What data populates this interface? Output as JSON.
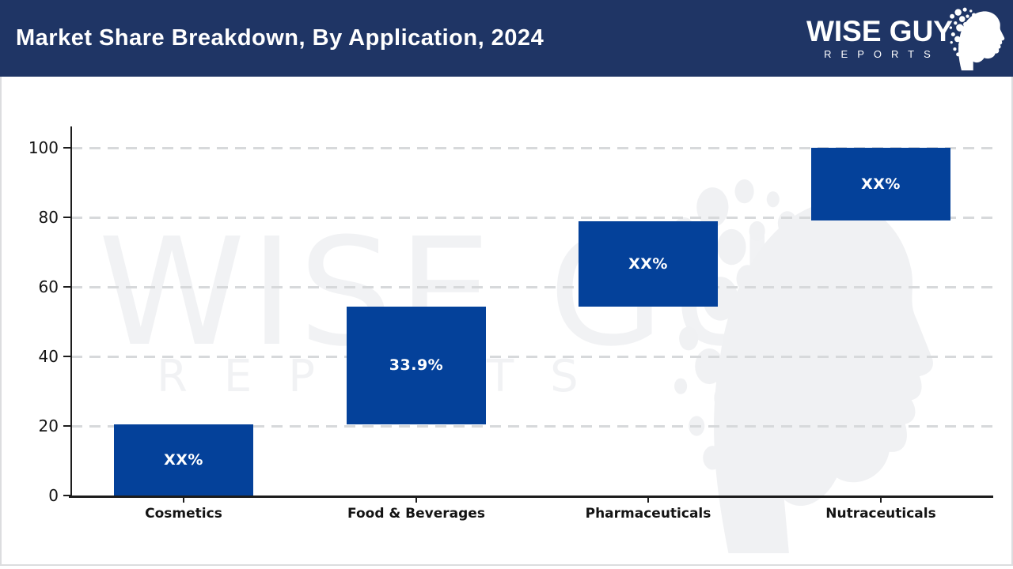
{
  "header": {
    "title": "Market Share Breakdown, By Application, 2024",
    "logo": {
      "line1": "WISE GUY",
      "line2": "REPORTS"
    }
  },
  "watermark": {
    "line1": "WISE GUY",
    "line2": "REPORTS"
  },
  "colors": {
    "header_bg": "#1f3565",
    "bar": "#04419a",
    "grid": "#d7d9db",
    "axis": "#1c1c1c",
    "watermark": "#f1f2f4"
  },
  "chart_data": {
    "type": "bar",
    "subtype": "waterfall",
    "title": "Market Share Breakdown, By Application, 2024",
    "categories": [
      "Cosmetics",
      "Food & Beverages",
      "Pharmaceuticals",
      "Nutraceuticals"
    ],
    "bars": [
      {
        "category": "Cosmetics",
        "start": 0,
        "end": 20.5,
        "label": "XX%"
      },
      {
        "category": "Food & Beverages",
        "start": 20.5,
        "end": 54.4,
        "label": "33.9%",
        "value": 33.9
      },
      {
        "category": "Pharmaceuticals",
        "start": 54.4,
        "end": 78.8,
        "label": "XX%"
      },
      {
        "category": "Nutraceuticals",
        "start": 79.0,
        "end": 100.0,
        "label": "XX%"
      }
    ],
    "xlabel": "",
    "ylabel": "",
    "y_ticks": [
      0,
      20,
      40,
      60,
      80,
      100
    ],
    "ylim": [
      0,
      100
    ],
    "grid": "horizontal-dashed",
    "legend_position": "none"
  }
}
